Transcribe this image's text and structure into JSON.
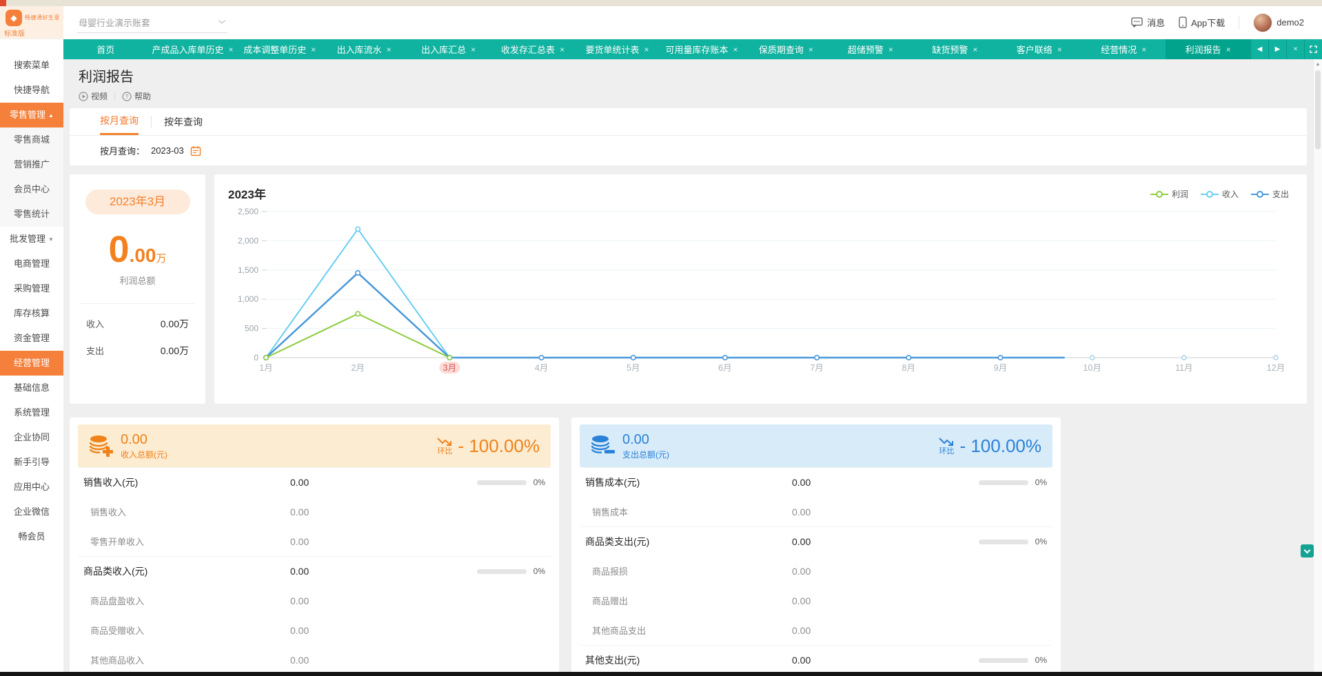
{
  "header": {
    "logo_text": "畅捷通好生意",
    "logo_edition": "标准版",
    "search_value": "母婴行业演示账套",
    "messages_label": "消息",
    "app_download_label": "App下载",
    "username": "demo2"
  },
  "sidebar": {
    "items": [
      {
        "label": "搜索菜单",
        "type": "top"
      },
      {
        "label": "快捷导航",
        "type": "top"
      },
      {
        "label": "零售管理",
        "type": "groupactive",
        "arrow": "▲"
      },
      {
        "label": "零售商城",
        "type": "sub"
      },
      {
        "label": "营销推广",
        "type": "sub"
      },
      {
        "label": "会员中心",
        "type": "sub"
      },
      {
        "label": "零售统计",
        "type": "sub"
      },
      {
        "label": "批发管理",
        "type": "group",
        "arrow": "▼"
      },
      {
        "label": "电商管理",
        "type": "top"
      },
      {
        "label": "采购管理",
        "type": "top"
      },
      {
        "label": "库存核算",
        "type": "top"
      },
      {
        "label": "资金管理",
        "type": "top"
      },
      {
        "label": "经营管理",
        "type": "active"
      },
      {
        "label": "基础信息",
        "type": "top"
      },
      {
        "label": "系统管理",
        "type": "top"
      },
      {
        "label": "企业协同",
        "type": "top"
      },
      {
        "label": "新手引导",
        "type": "top"
      },
      {
        "label": "应用中心",
        "type": "top"
      },
      {
        "label": "企业微信",
        "type": "top"
      },
      {
        "label": "畅会员",
        "type": "top"
      }
    ]
  },
  "tabbar": {
    "close_glyph": "×",
    "tabs": [
      {
        "label": "首页",
        "closable": false
      },
      {
        "label": "产成品入库单历史",
        "closable": true
      },
      {
        "label": "成本调整单历史",
        "closable": true
      },
      {
        "label": "出入库流水",
        "closable": true
      },
      {
        "label": "出入库汇总",
        "closable": true
      },
      {
        "label": "收发存汇总表",
        "closable": true
      },
      {
        "label": "要货单统计表",
        "closable": true
      },
      {
        "label": "可用量库存账本",
        "closable": true
      },
      {
        "label": "保质期查询",
        "closable": true
      },
      {
        "label": "超储预警",
        "closable": true
      },
      {
        "label": "缺货预警",
        "closable": true
      },
      {
        "label": "客户联络",
        "closable": true
      },
      {
        "label": "经营情况",
        "closable": true
      },
      {
        "label": "利润报告",
        "closable": true,
        "active": true
      }
    ],
    "controls": [
      {
        "name": "prev-tab",
        "glyph": "◀"
      },
      {
        "name": "next-tab",
        "glyph": "▶"
      },
      {
        "name": "close-tab",
        "glyph": "×"
      },
      {
        "name": "fullscreen",
        "glyph": "svg"
      }
    ]
  },
  "page": {
    "title": "利润报告",
    "video_label": "视频",
    "help_label": "帮助"
  },
  "query": {
    "month_tab": "按月查询",
    "year_tab": "按年查询",
    "date_label": "按月查询：",
    "date_value": "2023-03"
  },
  "summary": {
    "period": "2023年3月",
    "amount_int": "0",
    "amount_dec": ".00",
    "amount_unit": "万",
    "amount_label": "利润总额",
    "rows": [
      {
        "label": "收入",
        "value": "0.00万"
      },
      {
        "label": "支出",
        "value": "0.00万"
      }
    ]
  },
  "chart_data": {
    "type": "line",
    "title": "2023年",
    "x": [
      "1月",
      "2月",
      "3月",
      "4月",
      "5月",
      "6月",
      "7月",
      "8月",
      "9月",
      "10月",
      "11月",
      "12月"
    ],
    "highlighted_x": "3月",
    "highlight_colors": {
      "text": "#e05656",
      "pill": "#fbdcd6"
    },
    "ylim": [
      0,
      2500
    ],
    "yticks": [
      {
        "v": 0,
        "label": "0"
      },
      {
        "v": 500,
        "label": "500"
      },
      {
        "v": 1000,
        "label": "1,000"
      },
      {
        "v": 1500,
        "label": "1,500"
      },
      {
        "v": 2000,
        "label": "2,000"
      },
      {
        "v": 2500,
        "label": "2,500"
      }
    ],
    "grid": true,
    "legend_position": "top-right",
    "series": [
      {
        "name": "收入",
        "color": "#67cdf1",
        "values": [
          0,
          2200,
          0
        ]
      },
      {
        "name": "支出",
        "color": "#4897d9",
        "values": [
          0,
          1450,
          0,
          0,
          0,
          0,
          0,
          0,
          0
        ],
        "extend_to_x": 9.7,
        "no_data_marker_indices": [
          9,
          10,
          11
        ]
      },
      {
        "name": "利润",
        "color": "#8ccb3c",
        "values": [
          0,
          750,
          0
        ]
      }
    ],
    "legend_order": [
      "利润",
      "收入",
      "支出"
    ]
  },
  "panels": [
    {
      "id": "income",
      "accent": "#ef8219",
      "header_bg": "#fcecd2",
      "icon": "coins-plus",
      "total": "0.00",
      "total_label": "收入总额(元)",
      "trend_label": "环比",
      "trend_value": "- 100.00%",
      "rows": [
        {
          "label": "销售收入(元)",
          "value": "0.00",
          "group": true,
          "pct": "0%"
        },
        {
          "label": "销售收入",
          "value": "0.00"
        },
        {
          "label": "零售开单收入",
          "value": "0.00"
        },
        {
          "label": "商品类收入(元)",
          "value": "0.00",
          "group": true,
          "pct": "0%"
        },
        {
          "label": "商品盘盈收入",
          "value": "0.00"
        },
        {
          "label": "商品受赠收入",
          "value": "0.00"
        },
        {
          "label": "其他商品收入",
          "value": "0.00"
        }
      ]
    },
    {
      "id": "expense",
      "accent": "#2a82d8",
      "header_bg": "#d8ebf9",
      "icon": "coins-minus",
      "total": "0.00",
      "total_label": "支出总额(元)",
      "trend_label": "环比",
      "trend_value": "- 100.00%",
      "rows": [
        {
          "label": "销售成本(元)",
          "value": "0.00",
          "group": true,
          "pct": "0%"
        },
        {
          "label": "销售成本",
          "value": "0.00"
        },
        {
          "label": "商品类支出(元)",
          "value": "0.00",
          "group": true,
          "pct": "0%"
        },
        {
          "label": "商品报损",
          "value": "0.00"
        },
        {
          "label": "商品赠出",
          "value": "0.00"
        },
        {
          "label": "其他商品支出",
          "value": "0.00"
        },
        {
          "label": "其他支出(元)",
          "value": "0.00",
          "group": true,
          "pct": "0%"
        }
      ]
    }
  ]
}
